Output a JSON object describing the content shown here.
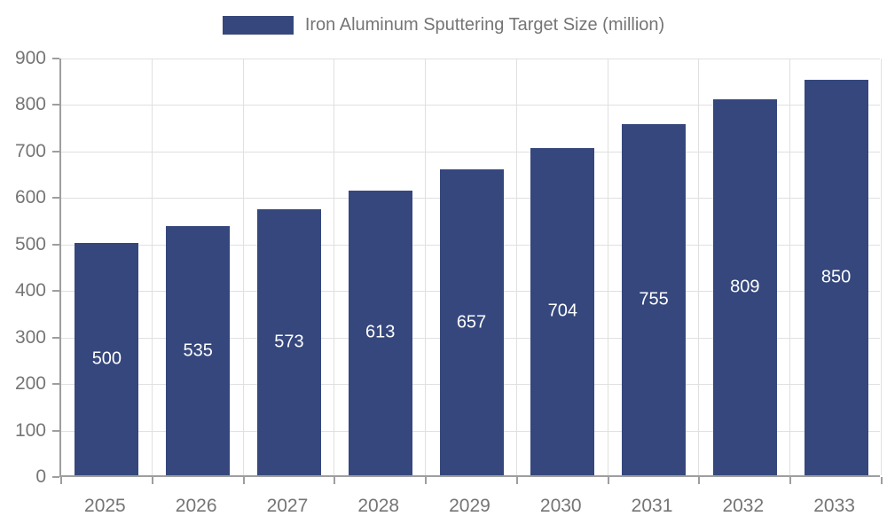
{
  "chart_data": {
    "type": "bar",
    "title": "",
    "series_name": "Iron Aluminum Sputtering Target Size (million)",
    "categories": [
      "2025",
      "2026",
      "2027",
      "2028",
      "2029",
      "2030",
      "2031",
      "2032",
      "2033"
    ],
    "values": [
      500,
      535,
      573,
      613,
      657,
      704,
      755,
      809,
      850
    ],
    "xlabel": "",
    "ylabel": "",
    "ylim": [
      0,
      900
    ],
    "yticks": [
      0,
      100,
      200,
      300,
      400,
      500,
      600,
      700,
      800,
      900
    ],
    "grid": true,
    "legend_position": "top",
    "colors": {
      "bar": "#35477D",
      "grid": "#e0e0e0",
      "axis": "#9e9e9e",
      "tick_text": "#757575",
      "value_label": "#ffffff",
      "background": "#ffffff"
    }
  }
}
